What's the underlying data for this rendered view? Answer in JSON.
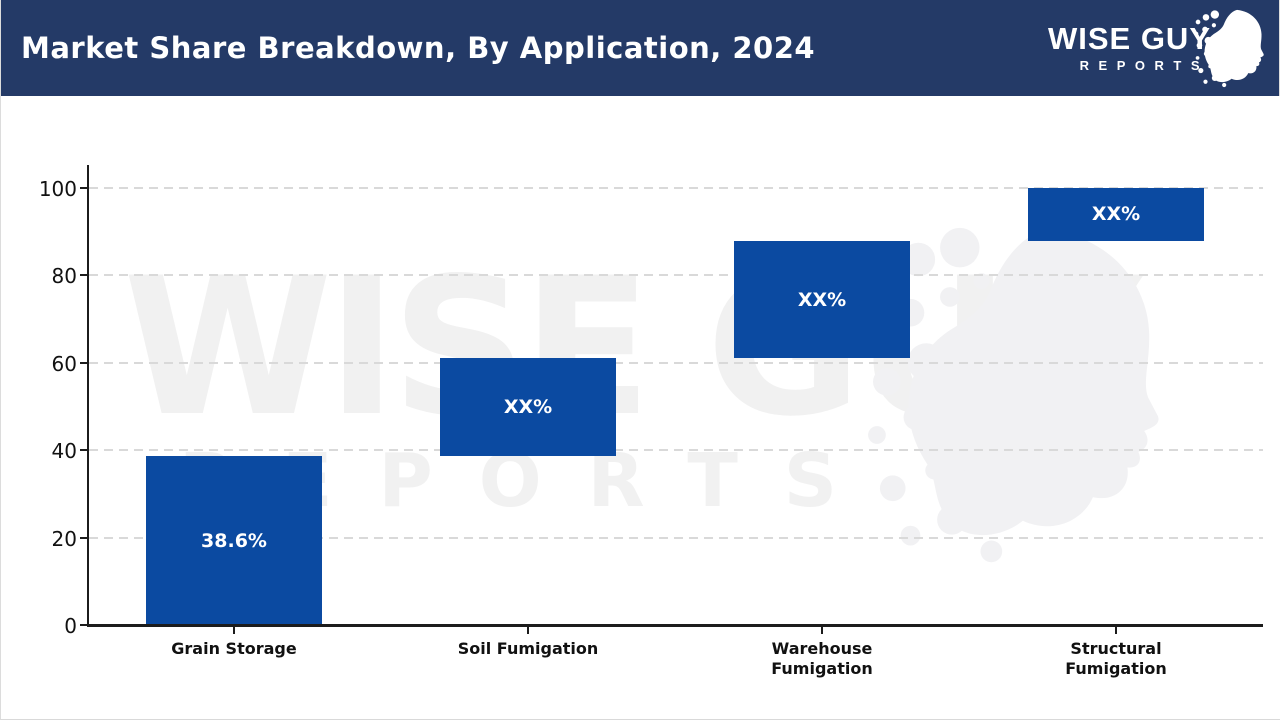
{
  "header": {
    "title": "Market Share Breakdown, By Application, 2024",
    "bg_color": "#243a67",
    "logo": {
      "wordmark": "WISE GUY",
      "subtext": "REPORTS"
    }
  },
  "watermark": {
    "wordmark": "WISE GUY",
    "subtext": "REPORTS"
  },
  "chart_data": {
    "type": "bar",
    "subtype": "waterfall",
    "title": "Market Share Breakdown, By Application, 2024",
    "categories": [
      "Grain Storage",
      "Soil Fumigation",
      "Warehouse Fumigation",
      "Structural Fumigation"
    ],
    "segments": [
      {
        "category": "Grain Storage",
        "start": 0,
        "end": 38.6,
        "label": "38.6%"
      },
      {
        "category": "Soil Fumigation",
        "start": 38.6,
        "end": 61.0,
        "label": "XX%"
      },
      {
        "category": "Warehouse Fumigation",
        "start": 61.0,
        "end": 87.8,
        "label": "XX%"
      },
      {
        "category": "Structural Fumigation",
        "start": 87.8,
        "end": 100.0,
        "label": "XX%"
      }
    ],
    "ylim": [
      0,
      100
    ],
    "yticks": [
      0,
      20,
      40,
      60,
      80,
      100
    ],
    "xlabel": "",
    "ylabel": "",
    "grid": true,
    "legend": false,
    "bar_color": "#0b4aa1",
    "bar_label_color": "#ffffff",
    "axis_color": "#1c1c1c",
    "gridline_color": "#d9d9d9"
  }
}
